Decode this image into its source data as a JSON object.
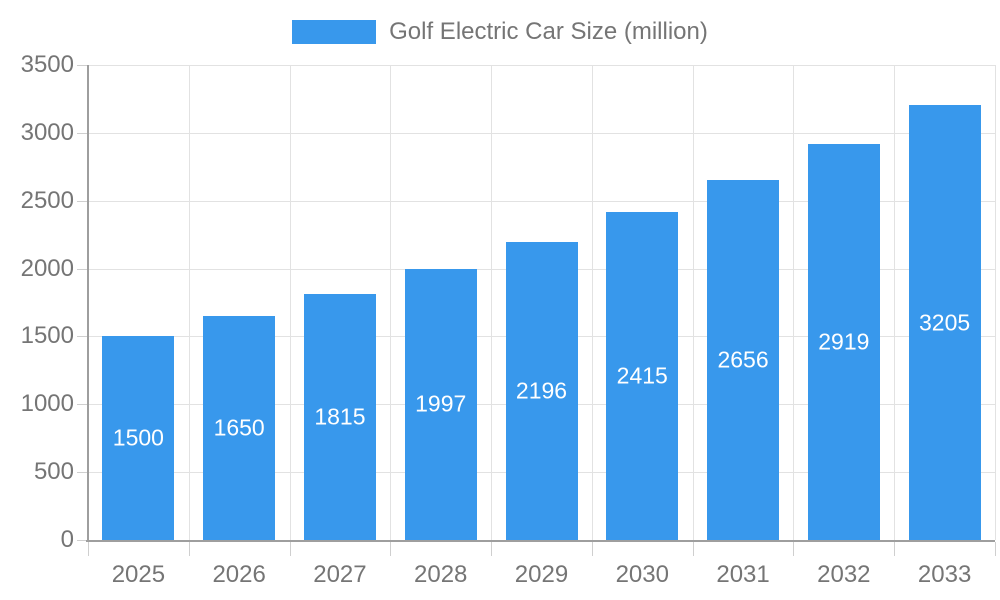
{
  "legend": {
    "label": "Golf Electric Car Size (million)"
  },
  "colors": {
    "bar": "#3898EC",
    "axis_line": "#9E9E9E",
    "grid_line": "#E2E2E2",
    "tick_line": "#CFCFCF",
    "axis_text": "#757575",
    "legend_text": "#757575",
    "bar_label_text": "#FFFFFF"
  },
  "chart_data": {
    "type": "bar",
    "title": "Golf Electric Car Size (million)",
    "categories": [
      "2025",
      "2026",
      "2027",
      "2028",
      "2029",
      "2030",
      "2031",
      "2032",
      "2033"
    ],
    "values": [
      1500,
      1650,
      1815,
      1997,
      2196,
      2415,
      2656,
      2919,
      3205
    ],
    "xlabel": "",
    "ylabel": "",
    "ylim": [
      0,
      3500
    ],
    "ytick_step": 500,
    "yticks": [
      0,
      500,
      1000,
      1500,
      2000,
      2500,
      3000,
      3500
    ],
    "grid": true,
    "legend_position": "top",
    "value_label_position": "inside-center"
  }
}
